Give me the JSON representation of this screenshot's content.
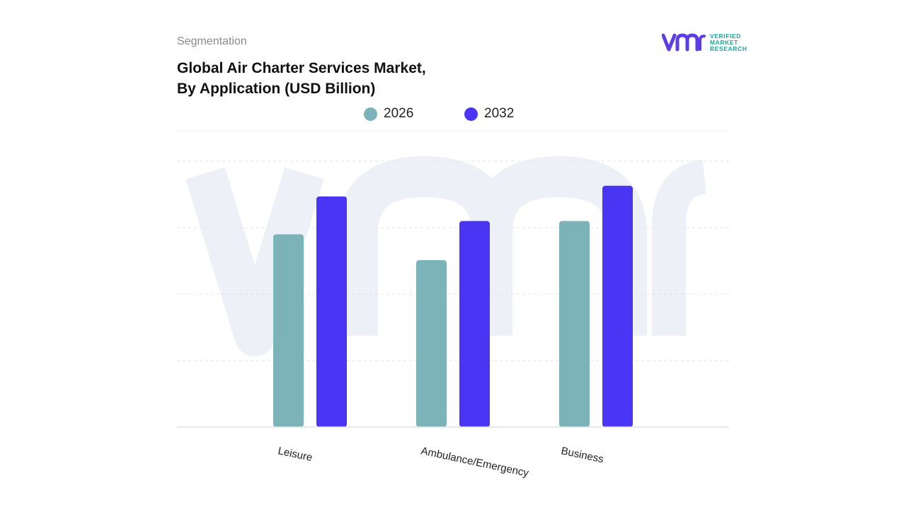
{
  "header": {
    "segment_label": "Segmentation",
    "title_line1": "Global Air Charter Services Market,",
    "title_line2": "By Application (USD Billion)"
  },
  "logo": {
    "line1": "VERIFIED",
    "line2": "MARKET",
    "line3": "RESEARCH",
    "mark_color": "#5b3fe4",
    "text_color": "#19a7a0"
  },
  "colors": {
    "series_2026": "#7bb3b8",
    "series_2032": "#4a35f5",
    "grid": "#e6e6e6",
    "watermark": "#eef0f7"
  },
  "chart_data": {
    "type": "bar",
    "title": "Global Air Charter Services Market, By Application (USD Billion)",
    "xlabel": "",
    "ylabel": "",
    "ylim": [
      0,
      4
    ],
    "grid": true,
    "legend_position": "top-center",
    "categories": [
      "Leisure",
      "Ambulance/Emergency",
      "Business"
    ],
    "series": [
      {
        "name": "2026",
        "values": [
          2.9,
          2.51,
          3.1
        ]
      },
      {
        "name": "2032",
        "values": [
          3.47,
          3.1,
          3.63
        ]
      }
    ]
  }
}
